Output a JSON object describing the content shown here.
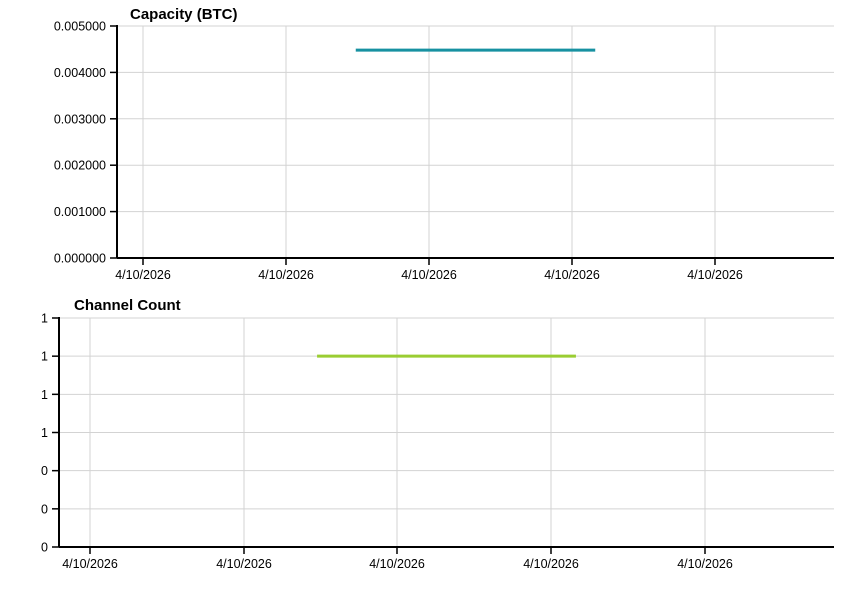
{
  "page": {
    "background": "#ffffff",
    "text_color": "#000000",
    "grid_color": "#d3d3d3",
    "axis_color": "#000000"
  },
  "chart_data": [
    {
      "type": "line",
      "title": "Capacity (BTC)",
      "xlabel": "",
      "ylabel": "",
      "ylim": [
        0,
        0.005
      ],
      "grid": true,
      "legend": false,
      "x_tick_labels": [
        "4/10/2026",
        "4/10/2026",
        "4/10/2026",
        "4/10/2026",
        "4/10/2026"
      ],
      "y_tick_labels": [
        "0.005000",
        "0.004000",
        "0.003000",
        "0.002000",
        "0.001000",
        "0.000000"
      ],
      "series": [
        {
          "name": "capacity",
          "color": "#1791A1",
          "value": 0.00448,
          "x_span_frac": [
            0.333,
            0.667
          ]
        }
      ]
    },
    {
      "type": "line",
      "title": "Channel Count",
      "xlabel": "",
      "ylabel": "",
      "ylim": [
        0,
        1.2
      ],
      "grid": true,
      "legend": false,
      "x_tick_labels": [
        "4/10/2026",
        "4/10/2026",
        "4/10/2026",
        "4/10/2026",
        "4/10/2026"
      ],
      "y_tick_labels": [
        "1",
        "1",
        "1",
        "1",
        "0",
        "0",
        "0"
      ],
      "series": [
        {
          "name": "channel-count",
          "color": "#9ACD32",
          "value": 1,
          "x_span_frac": [
            0.333,
            0.667
          ]
        }
      ]
    }
  ]
}
